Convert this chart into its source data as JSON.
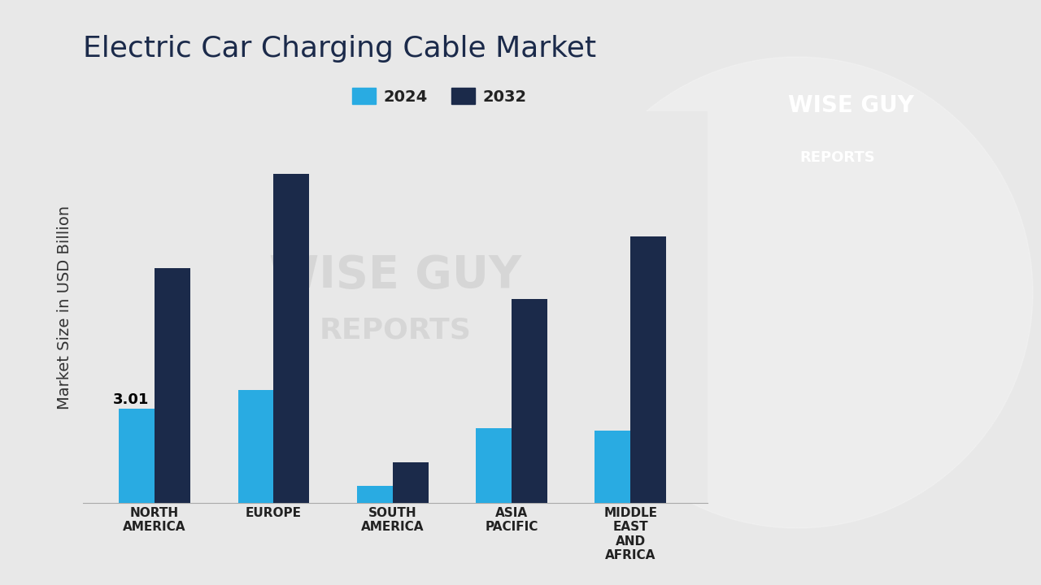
{
  "title": "Electric Car Charging Cable Market",
  "ylabel": "Market Size in USD Billion",
  "categories": [
    "NORTH\nAMERICA",
    "EUROPE",
    "SOUTH\nAMERICA",
    "ASIA\nPACIFIC",
    "MIDDLE\nEAST\nAND\nAFRICA"
  ],
  "values_2024": [
    3.01,
    3.6,
    0.55,
    2.4,
    2.3
  ],
  "values_2032": [
    7.5,
    10.5,
    1.3,
    6.5,
    8.5
  ],
  "color_2024": "#29ABE2",
  "color_2032": "#1B2A4A",
  "bar_annotation": "3.01",
  "bar_annotation_idx": 0,
  "bg_color": "#E8E8E8",
  "title_color": "#1B2A4A",
  "axis_label_color": "#333333",
  "legend_labels": [
    "2024",
    "2032"
  ],
  "bar_width": 0.3,
  "right_panel_color": "#1B2A4A",
  "title_fontsize": 26,
  "axis_label_fontsize": 14,
  "tick_label_fontsize": 11,
  "watermark_line1": "WISE GUY",
  "watermark_line2": "REPORTS",
  "logo_line1": "WISE GUY",
  "logo_line2": "REPORTS"
}
